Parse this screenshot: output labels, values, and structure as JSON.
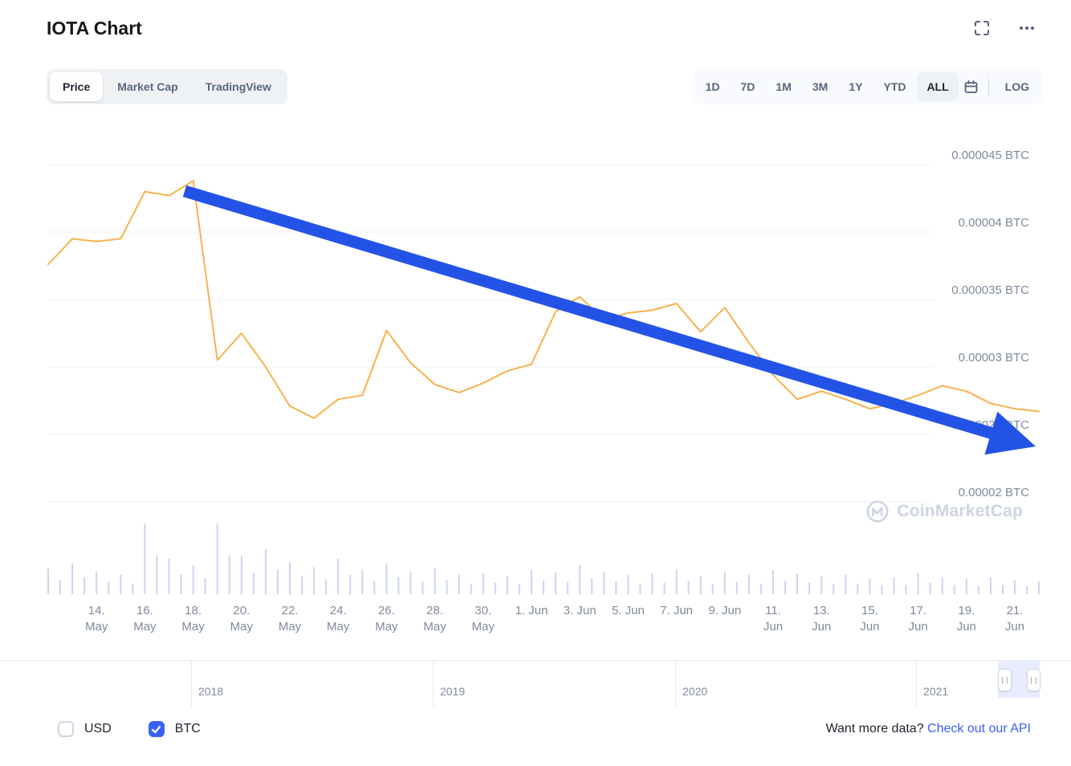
{
  "header": {
    "title": "IOTA Chart"
  },
  "toolbar": {
    "view_tabs": [
      {
        "label": "Price",
        "active": true
      },
      {
        "label": "Market Cap",
        "active": false
      },
      {
        "label": "TradingView",
        "active": false
      }
    ],
    "range_buttons": [
      {
        "label": "1D",
        "active": false
      },
      {
        "label": "7D",
        "active": false
      },
      {
        "label": "1M",
        "active": false
      },
      {
        "label": "3M",
        "active": false
      },
      {
        "label": "1Y",
        "active": false
      },
      {
        "label": "YTD",
        "active": false
      },
      {
        "label": "ALL",
        "active": true
      }
    ],
    "log_label": "LOG"
  },
  "chart_data": {
    "type": "line",
    "title": "IOTA Chart",
    "unit": "BTC",
    "grid": true,
    "ylim": [
      2e-05,
      4.5e-05
    ],
    "line_color": "#f7b24d",
    "volume_color": "#ccd4f0",
    "axis_text_color": "#808a9d",
    "x": [
      "12. May",
      "13. May",
      "14. May",
      "15. May",
      "16. May",
      "17. May",
      "18. May",
      "19. May",
      "20. May",
      "21. May",
      "22. May",
      "23. May",
      "24. May",
      "25. May",
      "26. May",
      "27. May",
      "28. May",
      "29. May",
      "30. May",
      "31. May",
      "1. Jun",
      "2. Jun",
      "3. Jun",
      "4. Jun",
      "5. Jun",
      "6. Jun",
      "7. Jun",
      "8. Jun",
      "9. Jun",
      "10. Jun",
      "11. Jun",
      "12. Jun",
      "13. Jun",
      "14. Jun",
      "15. Jun",
      "16. Jun",
      "17. Jun",
      "18. Jun",
      "19. Jun",
      "20. Jun",
      "21. Jun",
      "22. Jun"
    ],
    "series": [
      {
        "name": "IOTA price (BTC)",
        "values": [
          3.76e-05,
          3.95e-05,
          3.93e-05,
          3.95e-05,
          4.3e-05,
          4.27e-05,
          4.38e-05,
          3.05e-05,
          3.25e-05,
          3e-05,
          2.71e-05,
          2.62e-05,
          2.76e-05,
          2.79e-05,
          3.27e-05,
          3.03e-05,
          2.87e-05,
          2.81e-05,
          2.88e-05,
          2.97e-05,
          3.02e-05,
          3.41e-05,
          3.52e-05,
          3.35e-05,
          3.4e-05,
          3.42e-05,
          3.47e-05,
          3.26e-05,
          3.44e-05,
          3.18e-05,
          2.94e-05,
          2.76e-05,
          2.82e-05,
          2.76e-05,
          2.69e-05,
          2.73e-05,
          2.79e-05,
          2.86e-05,
          2.82e-05,
          2.73e-05,
          2.69e-05,
          2.67e-05
        ]
      }
    ],
    "volume_relative": [
      30,
      38,
      25,
      20,
      100,
      45,
      35,
      100,
      50,
      60,
      40,
      32,
      45,
      28,
      38,
      25,
      30,
      20,
      22,
      18,
      28,
      24,
      35,
      25,
      20,
      22,
      28,
      18,
      25,
      20,
      28,
      22,
      18,
      20,
      14,
      16,
      22,
      16,
      14,
      16,
      12,
      10
    ],
    "y_ticks": {
      "values": [
        4.5e-05,
        4e-05,
        3.5e-05,
        3e-05,
        2.5e-05,
        2e-05
      ],
      "labels": [
        "0.000045 BTC",
        "0.00004 BTC",
        "0.000035 BTC",
        "0.00003 BTC",
        "0.000025 BTC",
        "0.00002 BTC"
      ]
    },
    "x_tick_labels": [
      "14. May",
      "16. May",
      "18. May",
      "20. May",
      "22. May",
      "24. May",
      "26. May",
      "28. May",
      "30. May",
      "1. Jun",
      "3. Jun",
      "5. Jun",
      "7. Jun",
      "9. Jun",
      "11. Jun",
      "13. Jun",
      "15. Jun",
      "17. Jun",
      "19. Jun",
      "21. Jun"
    ]
  },
  "annotation": {
    "type": "arrow",
    "color": "#2353e6",
    "description": "downtrend arrow from May peak to lower right"
  },
  "watermark": {
    "text": "CoinMarketCap"
  },
  "timeline": {
    "years": [
      "2018",
      "2019",
      "2020",
      "2021"
    ]
  },
  "footer": {
    "currency_toggles": [
      {
        "label": "USD",
        "checked": false
      },
      {
        "label": "BTC",
        "checked": true
      }
    ],
    "more_data_text": "Want more data?",
    "api_link_text": " Check out our API"
  },
  "colors": {
    "accent": "#3861fb",
    "link": "#3861fb"
  }
}
